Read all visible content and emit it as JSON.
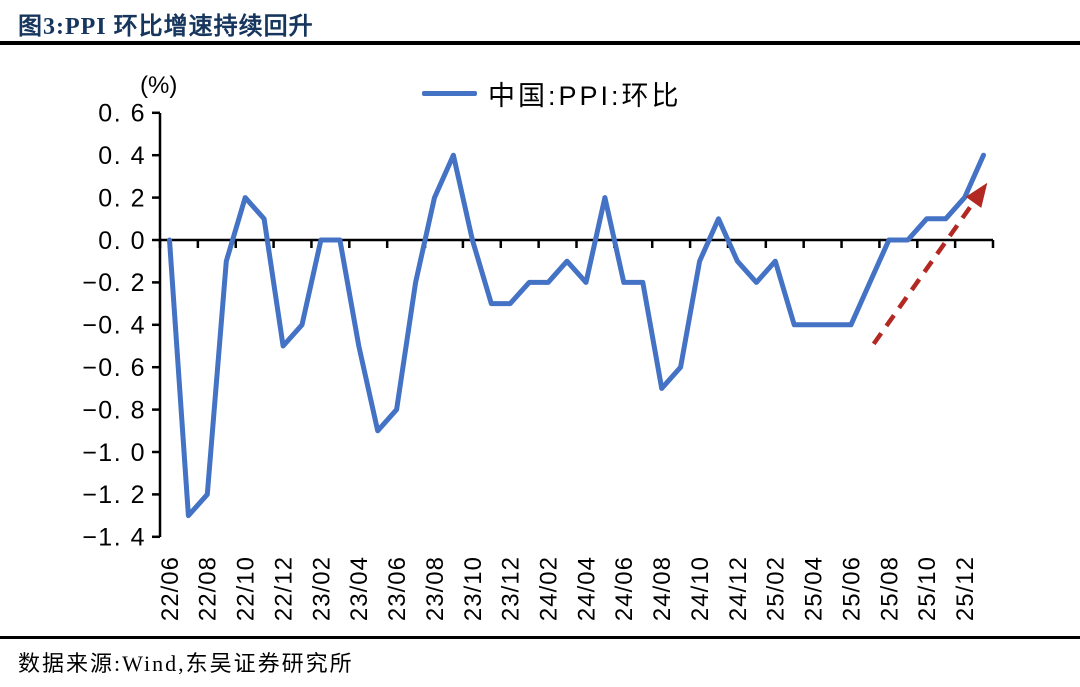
{
  "figure": {
    "title": "图3:PPI 环比增速持续回升",
    "source": "数据来源:Wind,东吴证券研究所"
  },
  "chart_data": {
    "type": "line",
    "unit_label": "(%)",
    "legend": [
      {
        "name": "中国:PPI:环比",
        "color": "#4472C4"
      }
    ],
    "legend_position": "top-center",
    "grid": false,
    "x": [
      "22/06",
      "22/07",
      "22/08",
      "22/09",
      "22/10",
      "22/11",
      "22/12",
      "23/01",
      "23/02",
      "23/03",
      "23/04",
      "23/05",
      "23/06",
      "23/07",
      "23/08",
      "23/09",
      "23/10",
      "23/11",
      "23/12",
      "24/01",
      "24/02",
      "24/03",
      "24/04",
      "24/05",
      "24/06",
      "24/07",
      "24/08",
      "24/09",
      "24/10",
      "24/11",
      "24/12",
      "25/01",
      "25/02",
      "25/03",
      "25/04",
      "25/05",
      "25/06",
      "25/07",
      "25/08",
      "25/09",
      "25/10",
      "25/11",
      "25/12",
      "26/01"
    ],
    "x_tick_labels": [
      "22/06",
      "22/08",
      "22/10",
      "22/12",
      "23/02",
      "23/04",
      "23/06",
      "23/08",
      "23/10",
      "23/12",
      "24/02",
      "24/04",
      "24/06",
      "24/08",
      "24/10",
      "24/12",
      "25/02",
      "25/04",
      "25/06",
      "25/08",
      "25/10",
      "25/12"
    ],
    "x_tick_step": 2,
    "series": [
      {
        "name": "中国:PPI:环比",
        "values": [
          0.0,
          -1.3,
          -1.2,
          -0.1,
          0.2,
          0.1,
          -0.5,
          -0.4,
          0.0,
          0.0,
          -0.5,
          -0.9,
          -0.8,
          -0.2,
          0.2,
          0.4,
          0.0,
          -0.3,
          -0.3,
          -0.2,
          -0.2,
          -0.1,
          -0.2,
          0.2,
          -0.2,
          -0.2,
          -0.7,
          -0.6,
          -0.1,
          0.1,
          -0.1,
          -0.2,
          -0.1,
          -0.4,
          -0.4,
          -0.4,
          -0.4,
          -0.2,
          0.0,
          0.0,
          0.1,
          0.1,
          0.2,
          0.4
        ]
      }
    ],
    "y_ticks": [
      0.6,
      0.4,
      0.2,
      0.0,
      -0.2,
      -0.4,
      -0.6,
      -0.8,
      -1.0,
      -1.2,
      -1.4
    ],
    "y_tick_labels": [
      "0. 6",
      "0. 4",
      "0. 2",
      "0. 0",
      "−0. 2",
      "−0. 4",
      "−0. 6",
      "−0. 8",
      "−1. 0",
      "−1. 2",
      "−1. 4"
    ],
    "ylim": [
      -1.4,
      0.6
    ],
    "annotation_arrow": {
      "style": "dashed",
      "color": "#B22822",
      "from": {
        "x_index": 37.2,
        "value": -0.49
      },
      "to": {
        "x_index": 43.2,
        "value": 0.27
      }
    },
    "colors": {
      "line": "#4472C4",
      "axis": "#000000",
      "arrow": "#B22822",
      "title": "#17365D"
    }
  }
}
